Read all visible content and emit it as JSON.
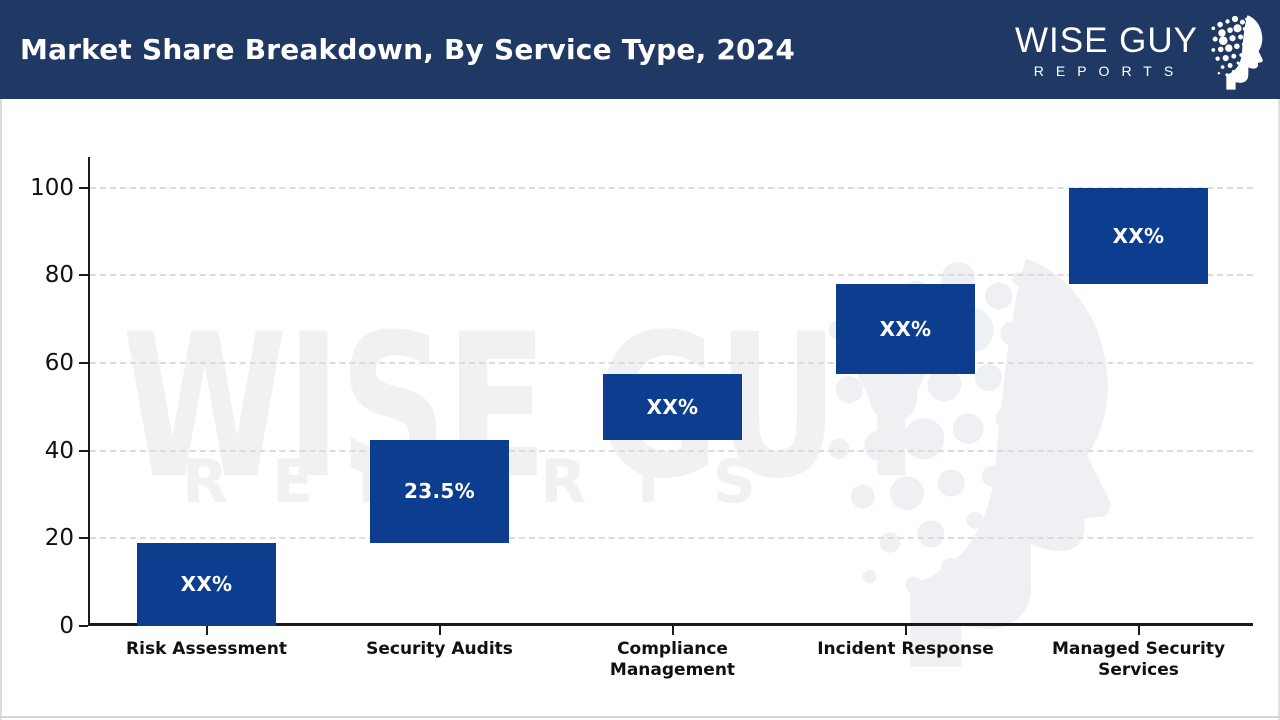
{
  "header": {
    "title": "Market Share Breakdown, By Service Type, 2024",
    "logo_line1": "WISE GUY",
    "logo_line2": "REPORTS"
  },
  "watermark": {
    "line1": "WISE GUY",
    "line2": "REPORTS"
  },
  "colors": {
    "header_bg": "#203864",
    "bar_fill": "#0c3d8f",
    "bar_label": "#ffffff",
    "gridline": "#dcdcdc",
    "axis": "#1a1a1a",
    "watermark": "#f1f1f4"
  },
  "chart_data": {
    "type": "bar",
    "variant": "waterfall",
    "title": "Market Share Breakdown, By Service Type, 2024",
    "categories": [
      "Risk Assessment",
      "Security Audits",
      "Compliance Management",
      "Incident Response",
      "Managed Security Services"
    ],
    "segments": [
      {
        "category": "Risk Assessment",
        "start": 0,
        "end": 19,
        "value": 19,
        "label": "XX%"
      },
      {
        "category": "Security Audits",
        "start": 19,
        "end": 42.5,
        "value": 23.5,
        "label": "23.5%"
      },
      {
        "category": "Compliance Management",
        "start": 42.5,
        "end": 57.5,
        "value": 15,
        "label": "XX%"
      },
      {
        "category": "Incident Response",
        "start": 57.5,
        "end": 78,
        "value": 20.5,
        "label": "XX%"
      },
      {
        "category": "Managed Security Services",
        "start": 78,
        "end": 100,
        "value": 22,
        "label": "XX%"
      }
    ],
    "y_ticks": [
      0,
      20,
      40,
      60,
      80,
      100
    ],
    "ylim": [
      0,
      107
    ],
    "xlabel": "",
    "ylabel": "",
    "grid": "horizontal-dashed",
    "legend": "none",
    "bar_color": "#0c3d8f",
    "bar_label_color": "#ffffff"
  }
}
